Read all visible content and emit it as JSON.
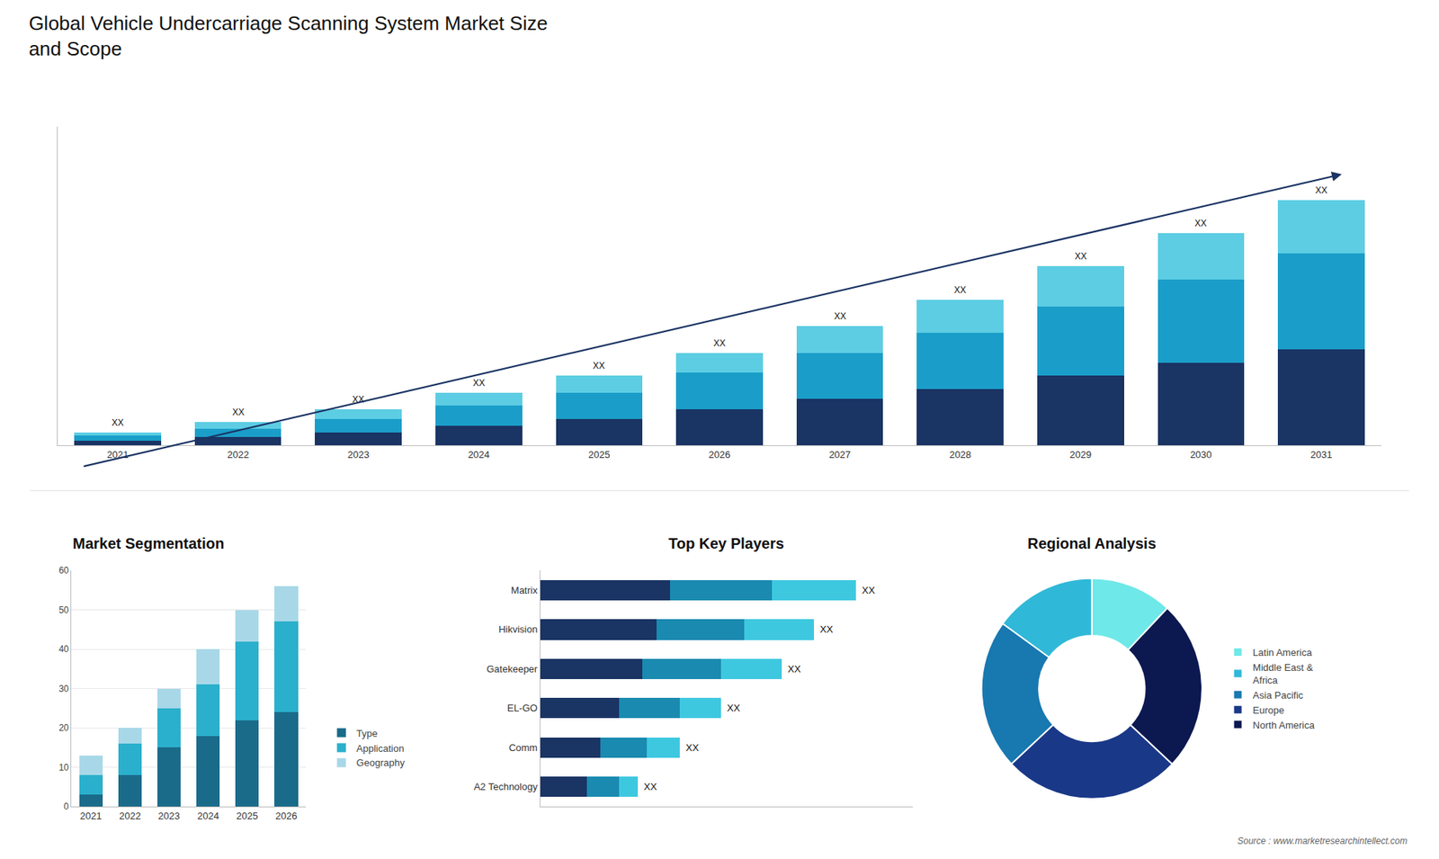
{
  "title": "Global Vehicle Undercarriage Scanning System Market Size\nand Scope",
  "annotations": [
    "Source : www.marketresearchintellect.com"
  ],
  "chart_data": [
    {
      "type": "bar",
      "stacked": true,
      "categories": [
        "2021",
        "2022",
        "2023",
        "2024",
        "2025",
        "2026",
        "2027",
        "2028",
        "2029",
        "2030",
        "2031"
      ],
      "series": [
        {
          "color": "#1a3464",
          "values": [
            1.5,
            2.5,
            4,
            6,
            8,
            11,
            14,
            17,
            21,
            25,
            29
          ]
        },
        {
          "color": "#1a9ec9",
          "values": [
            1.5,
            2.5,
            4,
            6,
            8,
            11,
            14,
            17,
            21,
            25,
            29
          ]
        },
        {
          "color": "#5dcde3",
          "values": [
            1,
            2,
            3,
            4,
            5,
            6,
            8,
            10,
            12,
            14,
            16
          ]
        }
      ],
      "ylim": [
        0,
        96.2
      ],
      "tick_labels": "x",
      "grid": false,
      "annotations": [
        "XX",
        "XX",
        "XX",
        "XX",
        "XX",
        "XX",
        "XX",
        "XX",
        "XX",
        "XX",
        "XX"
      ]
    },
    {
      "type": "bar",
      "stacked": true,
      "title": "Market Segmentation",
      "categories": [
        "2021",
        "2022",
        "2023",
        "2024",
        "2025",
        "2026"
      ],
      "series": [
        {
          "name": "Type",
          "color": "#1a6b8a",
          "values": [
            3,
            8,
            15,
            18,
            22,
            24
          ]
        },
        {
          "name": "Application",
          "color": "#2ab0cc",
          "values": [
            5,
            8,
            10,
            13,
            20,
            23
          ]
        },
        {
          "name": "Geography",
          "color": "#a8d8e8",
          "values": [
            5,
            4,
            5,
            9,
            8,
            9
          ]
        }
      ],
      "ylim": [
        0,
        60
      ],
      "yticks": [
        0,
        10,
        20,
        30,
        40,
        50,
        60
      ],
      "grid": true,
      "legend": "right"
    },
    {
      "type": "bar",
      "orientation": "horizontal",
      "stacked": true,
      "title": "Top Key Players",
      "categories": [
        "Matrix",
        "Hikvision",
        "Gatekeeper",
        "EL-GO",
        "Comm",
        "A2 Technology"
      ],
      "series": [
        {
          "color": "#1a3464",
          "values": [
            28,
            25,
            22,
            17,
            13,
            10
          ]
        },
        {
          "color": "#1a8ab0",
          "values": [
            22,
            19,
            17,
            13,
            10,
            7
          ]
        },
        {
          "color": "#3ec8e0",
          "values": [
            18,
            15,
            13,
            9,
            7,
            4
          ]
        }
      ],
      "xlim": [
        0,
        80.24
      ],
      "tick_labels": "y",
      "grid": false,
      "annotations": [
        "XX",
        "XX",
        "XX",
        "XX",
        "XX",
        "XX"
      ]
    },
    {
      "type": "pie",
      "title": "Regional Analysis",
      "categories": [
        "Latin America",
        "Middle East &\nAfrica",
        "Asia Pacific",
        "Europe",
        "North America"
      ],
      "values": [
        12,
        15,
        22,
        26,
        25
      ],
      "colors": [
        "#6ee8e8",
        "#30b8d8",
        "#1878b0",
        "#1a3888",
        "#0c1850"
      ],
      "legend": "right"
    }
  ]
}
